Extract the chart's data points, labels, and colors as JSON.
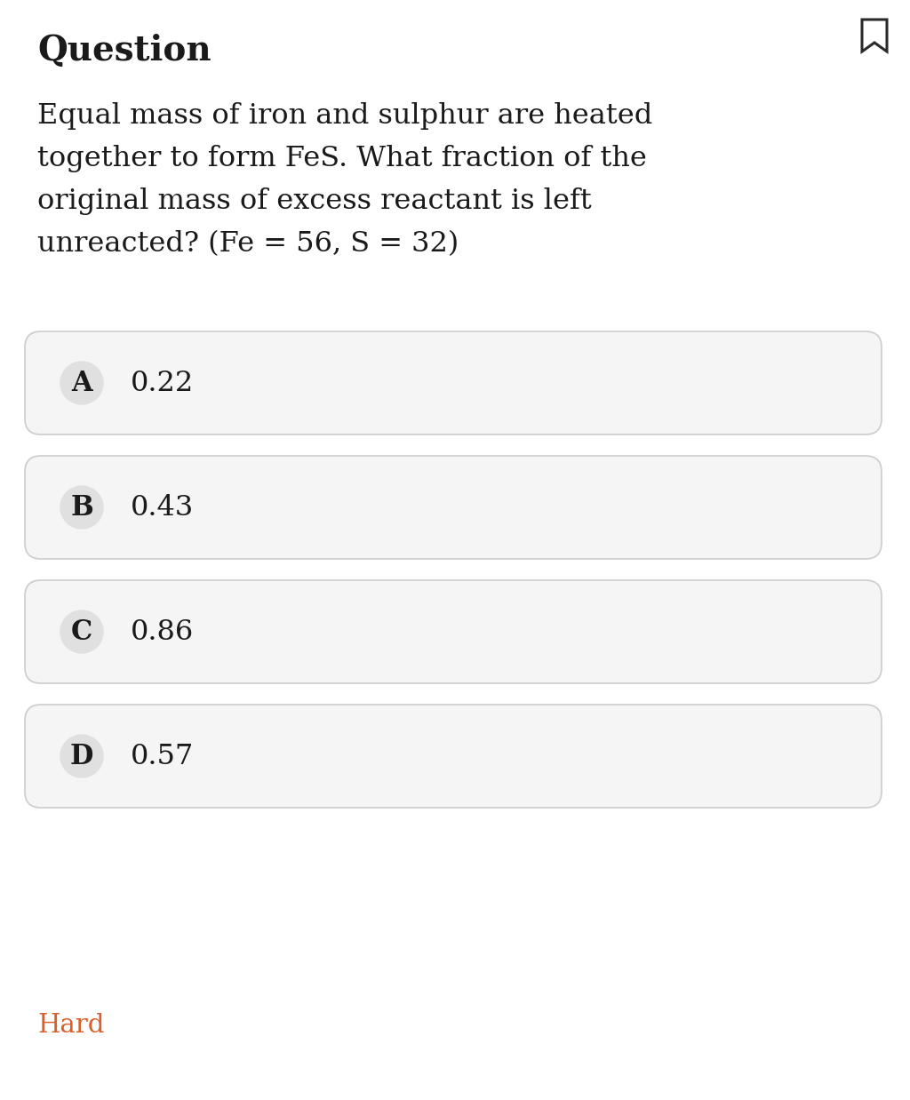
{
  "background_color": "#ffffff",
  "title": "Question",
  "title_fontsize": 28,
  "title_fontweight": "bold",
  "title_color": "#1a1a1a",
  "bookmark_color": "#2a2a2a",
  "question_text_lines": [
    "Equal mass of iron and sulphur are heated",
    "together to form FeS. What fraction of the",
    "original mass of excess reactant is left",
    "unreacted? (Fe = 56, S = 32)"
  ],
  "question_fontsize": 23,
  "question_color": "#1a1a1a",
  "options": [
    {
      "label": "A",
      "text": "0.22"
    },
    {
      "label": "B",
      "text": "0.43"
    },
    {
      "label": "C",
      "text": "0.86"
    },
    {
      "label": "D",
      "text": "0.57"
    }
  ],
  "option_fontsize": 23,
  "option_color": "#1a1a1a",
  "option_label_bg": "#e0e0e0",
  "option_box_bg": "#f5f5f5",
  "option_box_border": "#cccccc",
  "difficulty_text": "Hard",
  "difficulty_color": "#d95f2b",
  "difficulty_fontsize": 21,
  "fig_width": 10.24,
  "fig_height": 12.38,
  "dpi": 100
}
